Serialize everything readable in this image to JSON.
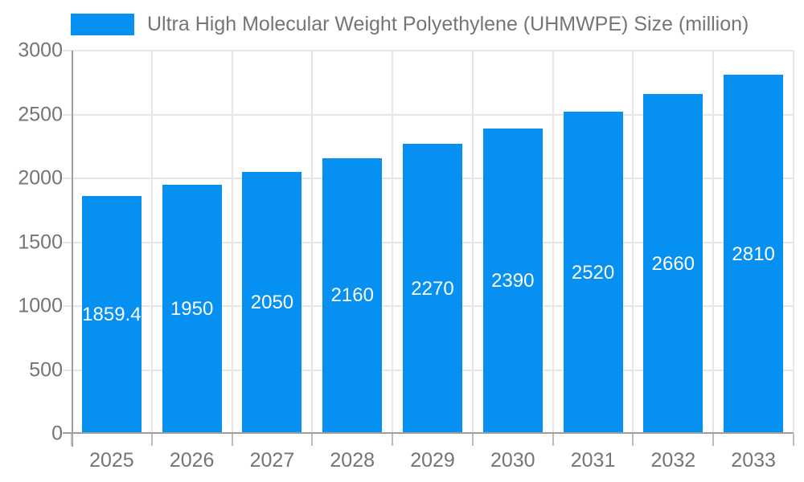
{
  "chart_data": {
    "type": "bar",
    "title": "Ultra High Molecular Weight Polyethylene (UHMWPE) Size (million)",
    "categories": [
      "2025",
      "2026",
      "2027",
      "2028",
      "2029",
      "2030",
      "2031",
      "2032",
      "2033"
    ],
    "series": [
      {
        "name": "Ultra High Molecular Weight Polyethylene (UHMWPE) Size (million)",
        "values": [
          1859.4,
          1950,
          2050,
          2160,
          2270,
          2390,
          2520,
          2660,
          2810
        ],
        "labels": [
          "1859.4",
          "1950",
          "2050",
          "2160",
          "2270",
          "2390",
          "2520",
          "2660",
          "2810"
        ]
      }
    ],
    "xlabel": "",
    "ylabel": "",
    "ylim": [
      0,
      3000
    ],
    "yticks": [
      0,
      500,
      1000,
      1500,
      2000,
      2500,
      3000
    ],
    "grid": "on",
    "legend_position": "top",
    "bar_value_labels_position": "inside-center"
  },
  "legend": {
    "label": "Ultra High Molecular Weight Polyethylene (UHMWPE) Size (million)"
  },
  "colors": {
    "bar": "#0590f2",
    "bar_label": "#ffffff",
    "axis_text": "#757575",
    "grid": "#e6e6e6",
    "axis_line": "#9e9e9e",
    "tick": "#bdbdbd",
    "background": "#ffffff"
  }
}
